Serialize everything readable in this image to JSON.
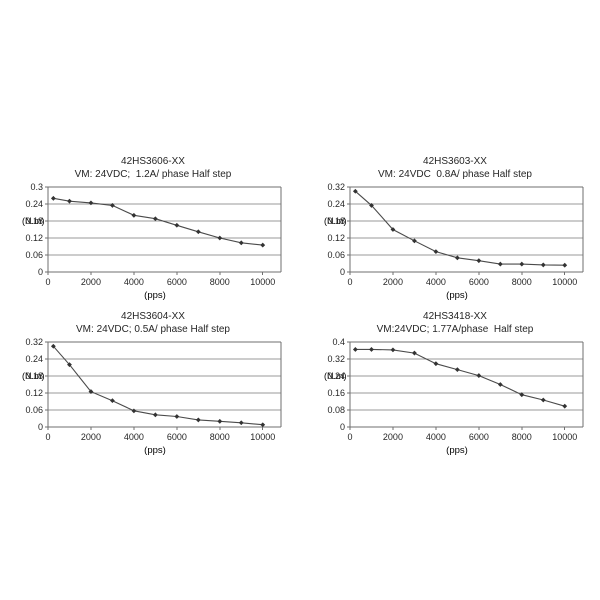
{
  "page": {
    "background": "#ffffff"
  },
  "colors": {
    "grid": "#9a9a9a",
    "axis": "#6f6f6f",
    "line": "#4a4a4a",
    "marker": "#333333",
    "text": "#262626"
  },
  "chart_data": [
    {
      "type": "line",
      "title": "42HS3606-XX",
      "subtitle": "VM: 24VDC;  1.2A/ phase Half step",
      "xlabel": "(pps)",
      "ylabel": "(N.m)",
      "x": [
        250,
        1000,
        2000,
        3000,
        4000,
        5000,
        6000,
        7000,
        8000,
        9000,
        10000
      ],
      "values": [
        0.26,
        0.25,
        0.244,
        0.235,
        0.2,
        0.188,
        0.165,
        0.142,
        0.12,
        0.103,
        0.095
      ],
      "y_ticks": [
        0.3,
        0.24,
        0.18,
        0.12,
        0.06,
        0
      ],
      "x_ticks": [
        0,
        2000,
        4000,
        6000,
        8000,
        10000
      ],
      "xlim": [
        0,
        10850
      ],
      "grid": "horizontal",
      "marker": "diamond",
      "legend": "none"
    },
    {
      "type": "line",
      "title": "42HS3603-XX",
      "subtitle": "VM: 24VDC  0.8A/ phase Half step",
      "xlabel": "(pps)",
      "ylabel": "(N.m)",
      "x": [
        250,
        1000,
        2000,
        3000,
        4000,
        5000,
        6000,
        7000,
        8000,
        9000,
        10000
      ],
      "values": [
        0.3,
        0.235,
        0.15,
        0.11,
        0.072,
        0.05,
        0.04,
        0.028,
        0.028,
        0.025,
        0.024
      ],
      "y_ticks": [
        0.32,
        0.24,
        0.18,
        0.12,
        0.06,
        0
      ],
      "x_ticks": [
        0,
        2000,
        4000,
        6000,
        8000,
        10000
      ],
      "xlim": [
        0,
        10850
      ],
      "grid": "horizontal",
      "marker": "diamond",
      "legend": "none"
    },
    {
      "type": "line",
      "title": "42HS3604-XX",
      "subtitle": "VM: 24VDC; 0.5A/ phase Half step",
      "xlabel": "(pps)",
      "ylabel": "(N.m)",
      "x": [
        250,
        1000,
        2000,
        3000,
        4000,
        5000,
        6000,
        7000,
        8000,
        9000,
        10000
      ],
      "values": [
        0.3,
        0.22,
        0.125,
        0.093,
        0.057,
        0.043,
        0.037,
        0.025,
        0.02,
        0.015,
        0.008
      ],
      "y_ticks": [
        0.32,
        0.24,
        0.18,
        0.12,
        0.06,
        0
      ],
      "x_ticks": [
        0,
        2000,
        4000,
        6000,
        8000,
        10000
      ],
      "xlim": [
        0,
        10850
      ],
      "grid": "horizontal",
      "marker": "diamond",
      "legend": "none"
    },
    {
      "type": "line",
      "title": "42HS3418-XX",
      "subtitle": "VM:24VDC; 1.77A/phase  Half step",
      "xlabel": "(pps)",
      "ylabel": "(N.m)",
      "x": [
        250,
        1000,
        2000,
        3000,
        4000,
        5000,
        6000,
        7000,
        8000,
        9000,
        10000
      ],
      "values": [
        0.365,
        0.365,
        0.363,
        0.348,
        0.298,
        0.27,
        0.242,
        0.2,
        0.152,
        0.127,
        0.098
      ],
      "y_ticks": [
        0.4,
        0.32,
        0.24,
        0.16,
        0.08,
        0
      ],
      "x_ticks": [
        0,
        2000,
        4000,
        6000,
        8000,
        10000
      ],
      "xlim": [
        0,
        10850
      ],
      "grid": "horizontal",
      "marker": "diamond",
      "legend": "none"
    }
  ]
}
